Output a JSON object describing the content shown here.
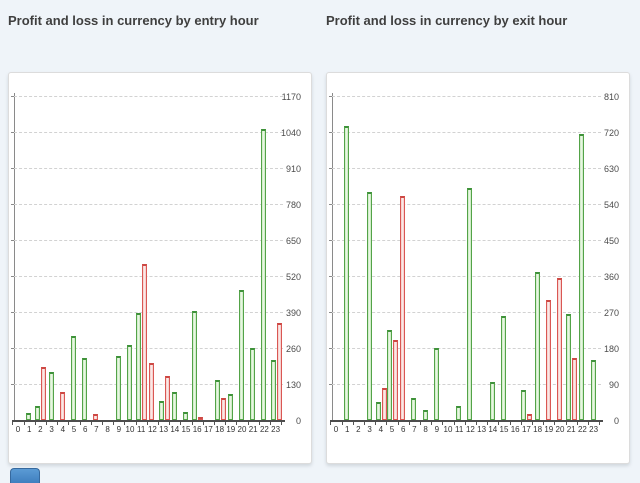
{
  "page": {
    "background": "#eff4f9",
    "panel_background": "#ffffff",
    "accent_blue": "#4d8fcb",
    "profit_color": "#53a348",
    "loss_color": "#da5753"
  },
  "chart_data": [
    {
      "type": "bar",
      "title": "Profit and loss in currency by entry hour",
      "xlabel": "",
      "ylabel": "",
      "categories": [
        "0",
        "1",
        "2",
        "3",
        "4",
        "5",
        "6",
        "7",
        "8",
        "9",
        "10",
        "11",
        "12",
        "13",
        "14",
        "15",
        "16",
        "17",
        "18",
        "19",
        "20",
        "21",
        "22",
        "23"
      ],
      "ylim": [
        0,
        1170
      ],
      "ytick_step": 130,
      "grid": true,
      "legend_position": "none",
      "series": [
        {
          "name": "profit",
          "color": "#53a348",
          "values": [
            null,
            25,
            50,
            175,
            null,
            305,
            225,
            null,
            null,
            230,
            270,
            385,
            null,
            70,
            100,
            30,
            395,
            null,
            145,
            95,
            470,
            260,
            1050,
            215
          ]
        },
        {
          "name": "loss",
          "color": "#da5753",
          "values": [
            null,
            null,
            190,
            null,
            100,
            null,
            null,
            20,
            null,
            null,
            null,
            565,
            205,
            160,
            null,
            null,
            10,
            null,
            80,
            null,
            null,
            null,
            null,
            350
          ]
        }
      ]
    },
    {
      "type": "bar",
      "title": "Profit and loss in currency by exit hour",
      "xlabel": "",
      "ylabel": "",
      "categories": [
        "0",
        "1",
        "2",
        "3",
        "4",
        "5",
        "6",
        "7",
        "8",
        "9",
        "10",
        "11",
        "12",
        "13",
        "14",
        "15",
        "16",
        "17",
        "18",
        "19",
        "20",
        "21",
        "22",
        "23"
      ],
      "ylim": [
        0,
        810
      ],
      "ytick_step": 90,
      "grid": true,
      "legend_position": "none",
      "series": [
        {
          "name": "profit",
          "color": "#53a348",
          "values": [
            null,
            735,
            null,
            570,
            45,
            225,
            null,
            55,
            25,
            180,
            null,
            35,
            580,
            null,
            95,
            260,
            null,
            75,
            370,
            null,
            null,
            265,
            715,
            150
          ]
        },
        {
          "name": "loss",
          "color": "#da5753",
          "values": [
            null,
            null,
            null,
            null,
            80,
            200,
            560,
            null,
            null,
            null,
            null,
            null,
            null,
            null,
            null,
            null,
            null,
            15,
            null,
            300,
            355,
            155,
            null,
            null
          ]
        }
      ]
    }
  ],
  "footer": {
    "partial_button": "blue-button-cut-off-at-bottom-edge"
  }
}
